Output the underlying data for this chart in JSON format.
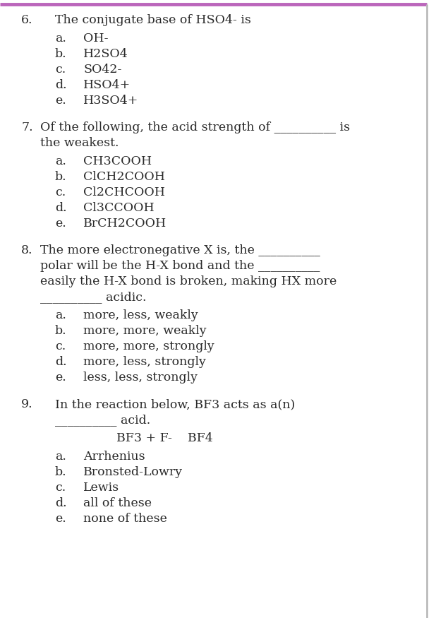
{
  "bg_color": "#ffffff",
  "text_color": "#2a2a2a",
  "border_color": "#bb66bb",
  "right_border_color": "#bbbbbb",
  "font_size": 12.5,
  "questions": [
    {
      "number": "6.",
      "indent_num": 30,
      "indent_q": 78,
      "indent_label": 78,
      "indent_choice": 118,
      "question_lines": [
        "The conjugate base of HSO4- is"
      ],
      "equation": null,
      "choices": [
        {
          "label": "a.",
          "text": "OH-"
        },
        {
          "label": "b.",
          "text": "H2SO4"
        },
        {
          "label": "c.",
          "text": "SO42-"
        },
        {
          "label": "d.",
          "text": "HSO4+"
        },
        {
          "label": "e.",
          "text": "H3SO4+"
        }
      ]
    },
    {
      "number": "7.",
      "indent_num": 30,
      "indent_q": 57,
      "indent_label": 78,
      "indent_choice": 118,
      "question_lines": [
        "Of the following, the acid strength of __________ is",
        "the weakest."
      ],
      "equation": null,
      "choices": [
        {
          "label": "a.",
          "text": "CH3COOH"
        },
        {
          "label": "b.",
          "text": "ClCH2COOH"
        },
        {
          "label": "c.",
          "text": "Cl2CHCOOH"
        },
        {
          "label": "d.",
          "text": "Cl3CCOOH"
        },
        {
          "label": "e.",
          "text": "BrCH2COOH"
        }
      ]
    },
    {
      "number": "8.",
      "indent_num": 30,
      "indent_q": 57,
      "indent_label": 78,
      "indent_choice": 118,
      "question_lines": [
        "The more electronegative X is, the __________",
        "polar will be the H-X bond and the __________",
        "easily the H-X bond is broken, making HX more",
        "__________ acidic."
      ],
      "equation": null,
      "choices": [
        {
          "label": "a.",
          "text": "more, less, weakly"
        },
        {
          "label": "b.",
          "text": "more, more, weakly"
        },
        {
          "label": "c.",
          "text": "more, more, strongly"
        },
        {
          "label": "d.",
          "text": "more, less, strongly"
        },
        {
          "label": "e.",
          "text": "less, less, strongly"
        }
      ]
    },
    {
      "number": "9.",
      "indent_num": 30,
      "indent_q": 78,
      "indent_label": 78,
      "indent_choice": 118,
      "question_lines": [
        "In the reaction below, BF3 acts as a(n)",
        "__________ acid."
      ],
      "equation": "BF3 + F-    BF4",
      "choices": [
        {
          "label": "a.",
          "text": "Arrhenius"
        },
        {
          "label": "b.",
          "text": "Bronsted-Lowry"
        },
        {
          "label": "c.",
          "text": "Lewis"
        },
        {
          "label": "d.",
          "text": "all of these"
        },
        {
          "label": "e.",
          "text": "none of these"
        }
      ]
    }
  ]
}
